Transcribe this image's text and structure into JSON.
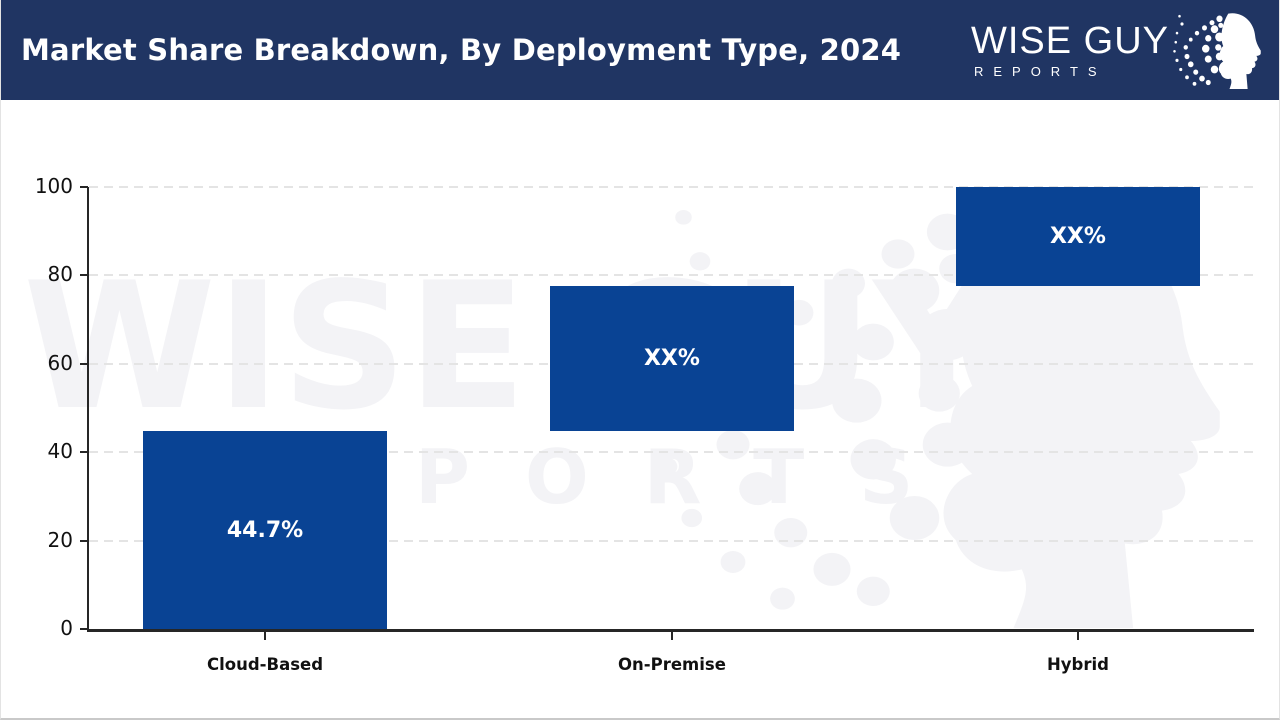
{
  "header": {
    "title": "Market Share Breakdown, By Deployment Type, 2024",
    "logo": {
      "line1": "WISE GUY",
      "line2": "REPORTS"
    }
  },
  "watermark": {
    "line1": "WISE GUY",
    "line2": "REPORTS"
  },
  "colors": {
    "header_bg": "#203563",
    "bar": "#094394",
    "bar_label": "#ffffff",
    "grid": "#e4e4e4",
    "axis": "#262626",
    "watermark": "#f3f3f6"
  },
  "chart_data": {
    "type": "bar",
    "variant": "waterfall",
    "title": "Market Share Breakdown, By Deployment Type, 2024",
    "categories": [
      "Cloud-Based",
      "On-Premise",
      "Hybrid"
    ],
    "segments": [
      {
        "category": "Cloud-Based",
        "start": 0,
        "end": 44.7,
        "label": "44.7%"
      },
      {
        "category": "On-Premise",
        "start": 44.7,
        "end": 77.7,
        "label": "XX%"
      },
      {
        "category": "Hybrid",
        "start": 77.7,
        "end": 100,
        "label": "XX%"
      }
    ],
    "displayed_values": [
      "44.7%",
      "XX%",
      "XX%"
    ],
    "y_ticks": [
      0,
      20,
      40,
      60,
      80,
      100
    ],
    "ylim": [
      0,
      100
    ],
    "xlabel": "",
    "ylabel": "",
    "grid": "horizontal-dashed",
    "legend": "none"
  }
}
